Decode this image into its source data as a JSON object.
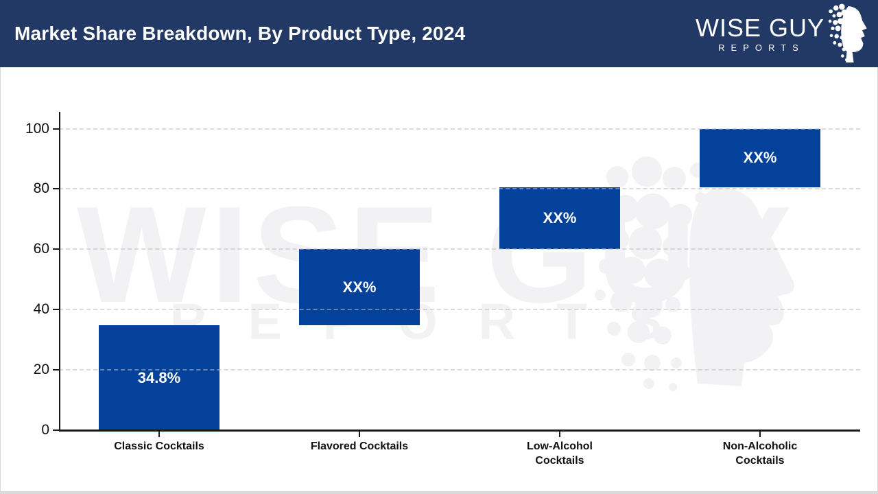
{
  "header": {
    "title": "Market Share Breakdown, By Product Type, 2024",
    "logo": {
      "line1": "WISE GUY",
      "line2": "REPORTS"
    }
  },
  "watermark": {
    "line1": "WISE GUY",
    "line2": "REPORTS"
  },
  "icons": {
    "logo_head": "wiseguy-dotted-head-profile",
    "watermark_head": "wiseguy-dotted-head-profile"
  },
  "chart_data": {
    "type": "bar",
    "subtype": "waterfall",
    "title": "Market Share Breakdown, By Product Type, 2024",
    "categories": [
      "Classic Cocktails",
      "Flavored Cocktails",
      "Low-Alcohol\nCocktails",
      "Non-Alcoholic\nCocktails"
    ],
    "segments": [
      {
        "category": "Classic Cocktails",
        "start": 0,
        "end": 34.8,
        "label": "34.8%"
      },
      {
        "category": "Flavored Cocktails",
        "start": 34.8,
        "end": 60.1,
        "label": "XX%"
      },
      {
        "category": "Low-Alcohol Cocktails",
        "start": 60.1,
        "end": 80.5,
        "label": "XX%"
      },
      {
        "category": "Non-Alcoholic Cocktails",
        "start": 80.5,
        "end": 100,
        "label": "XX%"
      }
    ],
    "xlabel": "",
    "ylabel": "",
    "ylim": [
      0,
      100
    ],
    "yticks": [
      0,
      20,
      40,
      60,
      80,
      100
    ],
    "grid": "horizontal-dashed",
    "legend": "none"
  },
  "colors": {
    "header_bg": "#223965",
    "bar": "#04419b",
    "bar_label": "#ffffff",
    "axis": "#1a1a1a",
    "grid": "#bebebe",
    "tick_text": "#111111",
    "title_text": "#ffffff",
    "watermark": "#f2f2f5",
    "footer": "#d9d9d9"
  }
}
